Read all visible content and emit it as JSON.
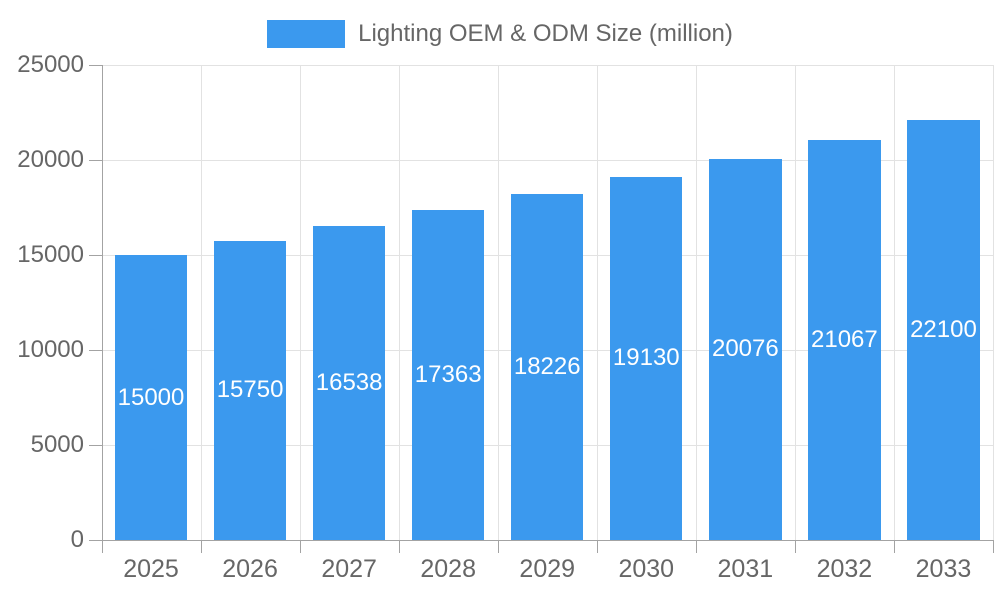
{
  "chart_data": {
    "type": "bar",
    "title": "Lighting OEM & ODM Size (million)",
    "categories": [
      "2025",
      "2026",
      "2027",
      "2028",
      "2029",
      "2030",
      "2031",
      "2032",
      "2033"
    ],
    "values": [
      15000,
      15750,
      16538,
      17363,
      18226,
      19130,
      20076,
      21067,
      22100
    ],
    "series": [
      {
        "name": "Lighting OEM & ODM Size (million)",
        "values": [
          15000,
          15750,
          16538,
          17363,
          18226,
          19130,
          20076,
          21067,
          22100
        ]
      }
    ],
    "xlabel": "",
    "ylabel": "",
    "ylim": [
      0,
      25000
    ],
    "y_ticks": [
      0,
      5000,
      10000,
      15000,
      20000,
      25000
    ],
    "grid": "horizontal-and-vertical",
    "legend_position": "top-center",
    "bar_color": "#3b99ee",
    "value_label_color": "#ffffff",
    "axis_text_color": "#666666",
    "grid_color": "#e2e2e2",
    "axis_line_color": "#a3a3a3",
    "background_color": "#ffffff"
  }
}
